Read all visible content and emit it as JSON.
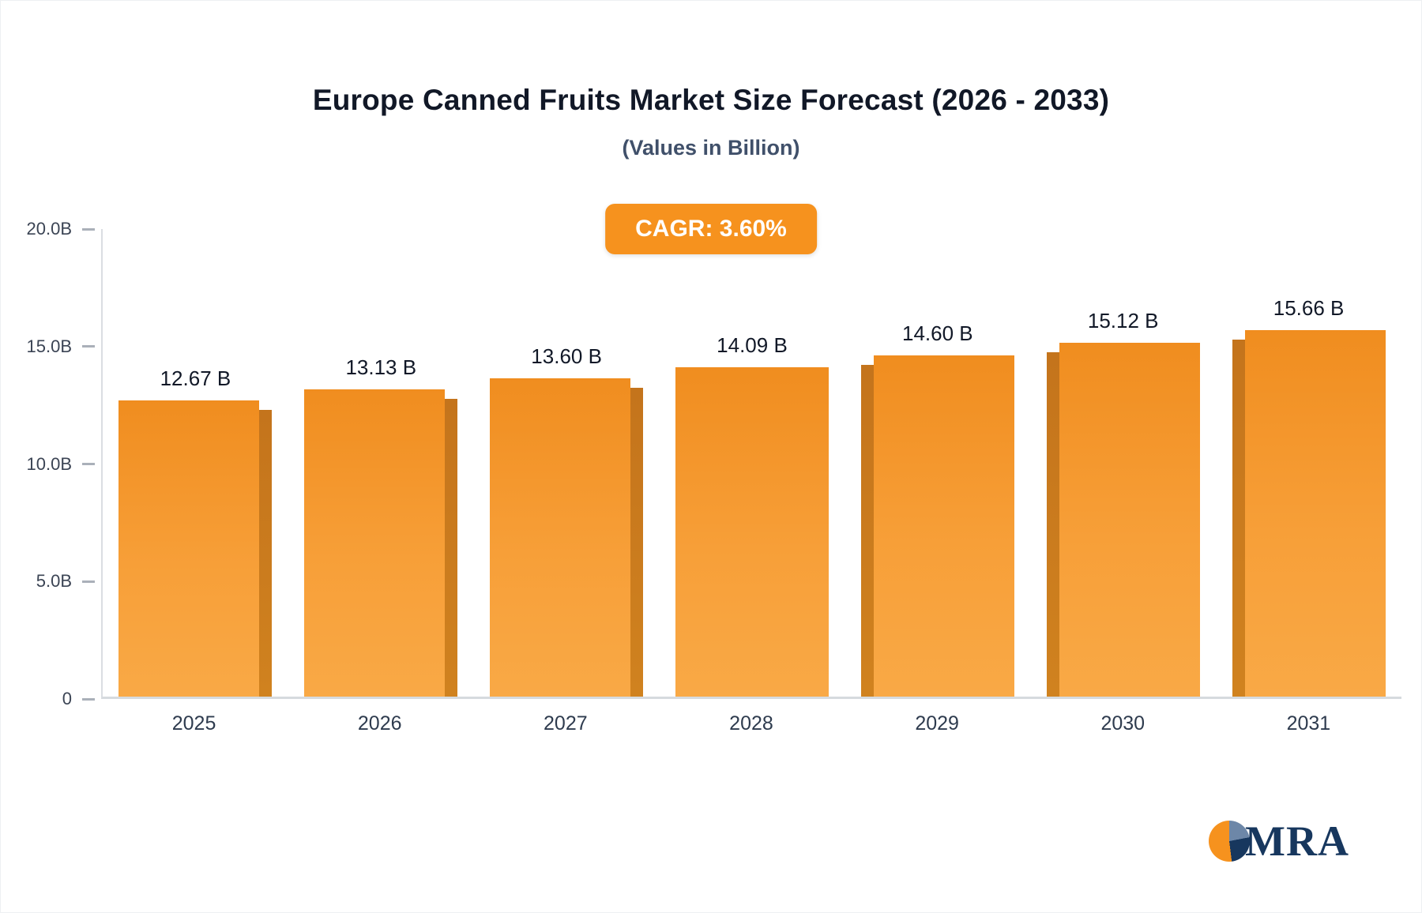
{
  "header": {
    "title": "Europe Canned Fruits Market Size Forecast (2026 - 2033)",
    "subtitle": "(Values in Billion)",
    "cagr_label": "CAGR: 3.60%"
  },
  "logo": {
    "text": "MRA"
  },
  "chart_data": {
    "type": "bar",
    "title": "Europe Canned Fruits Market Size Forecast (2026 - 2033)",
    "subtitle": "(Values in Billion)",
    "categories": [
      "2025",
      "2026",
      "2027",
      "2028",
      "2029",
      "2030",
      "2031"
    ],
    "values": [
      12.67,
      13.13,
      13.6,
      14.09,
      14.6,
      15.12,
      15.66
    ],
    "value_labels": [
      "12.67 B",
      "13.13 B",
      "13.60 B",
      "14.09 B",
      "14.60 B",
      "15.12 B",
      "15.66 B"
    ],
    "xlabel": "",
    "ylabel": "",
    "ylim": [
      0,
      20
    ],
    "yticks": [
      {
        "value": 0,
        "label": "0"
      },
      {
        "value": 5,
        "label": "5.0B"
      },
      {
        "value": 10,
        "label": "10.0B"
      },
      {
        "value": 15,
        "label": "15.0B"
      },
      {
        "value": 20,
        "label": "20.0B"
      }
    ],
    "grid": false,
    "legend": "none",
    "annotation": "CAGR: 3.60%",
    "bar_color": "#F6921E",
    "bar_shadow_color": "#C4741C",
    "accent_color": "#F6921E",
    "logo_navy": "#17375E"
  }
}
